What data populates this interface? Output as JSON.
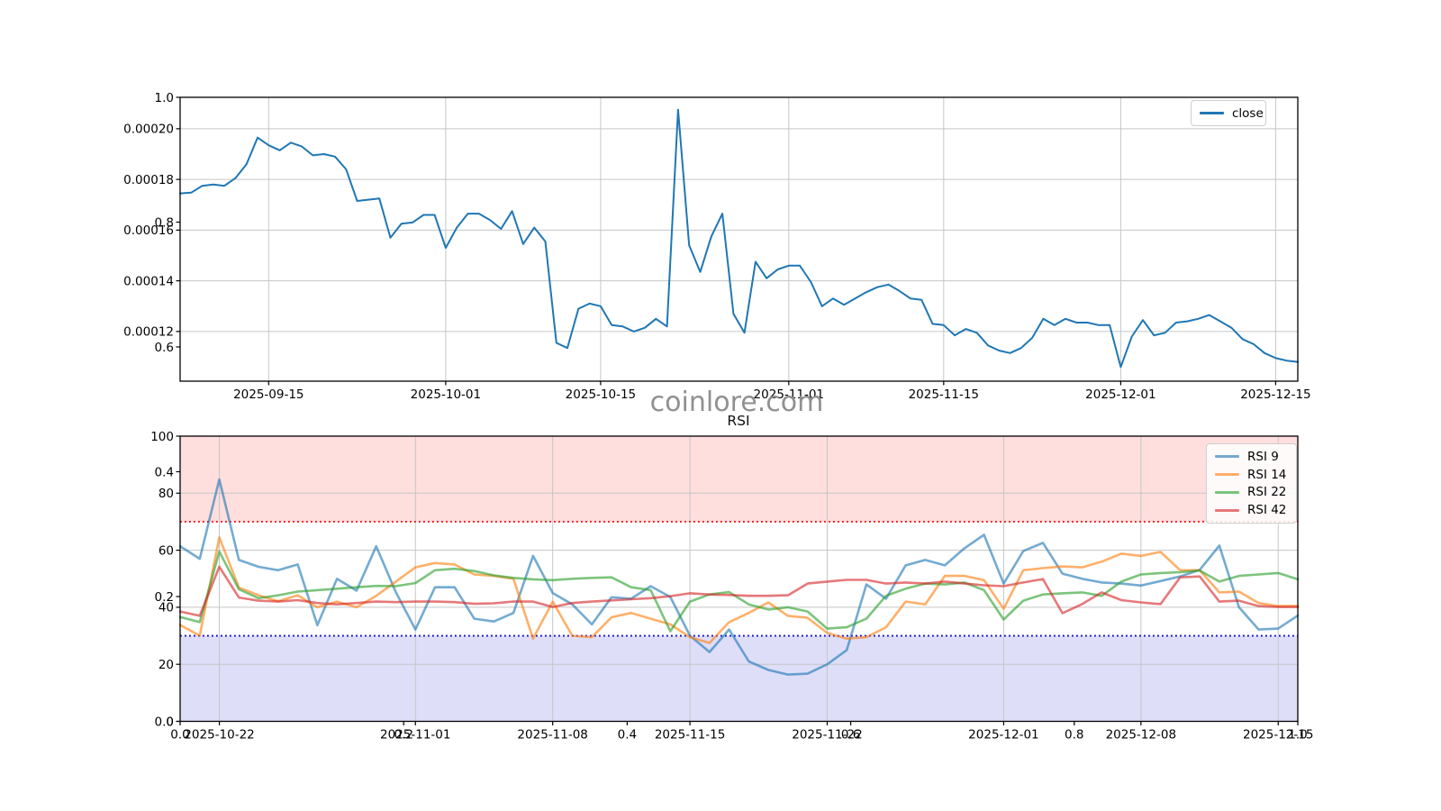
{
  "watermark": "coinlore.com",
  "figure_overlay_axis": {
    "xtick_labels": [
      "0.0",
      "0.2",
      "0.4",
      "0.6",
      "0.8",
      "1.0"
    ],
    "ytick_labels": [
      "1.0",
      "0.8",
      "0.6",
      "0.4",
      "0.2",
      "0.0"
    ]
  },
  "colors": {
    "grid": "#c6c6c6",
    "spine": "#000000",
    "watermark_gray": "#909090",
    "overbought_band": "rgba(255,0,0,0.13)",
    "oversold_band": "rgba(0,0,205,0.13)",
    "overbought_line": "#ff0000",
    "oversold_line": "#0000cd"
  },
  "chart_data": [
    {
      "type": "line",
      "name": "price-chart",
      "title": "",
      "x_start_date": "2025-09-07",
      "x_end_date": "2025-12-17",
      "ylim": [
        0.0001004,
        0.0002124
      ],
      "grid": true,
      "yticks": [
        {
          "value": 0.0002,
          "label": "0.00020"
        },
        {
          "value": 0.00018,
          "label": "0.00018"
        },
        {
          "value": 0.00016,
          "label": "0.00016"
        },
        {
          "value": 0.00014,
          "label": "0.00014"
        },
        {
          "value": 0.00012,
          "label": "0.00012"
        }
      ],
      "xticks": [
        {
          "label": "2025-09-15",
          "index": 8
        },
        {
          "label": "2025-10-01",
          "index": 24
        },
        {
          "label": "2025-10-15",
          "index": 38
        },
        {
          "label": "2025-11-01",
          "index": 55
        },
        {
          "label": "2025-11-15",
          "index": 69
        },
        {
          "label": "2025-12-01",
          "index": 85
        },
        {
          "label": "2025-12-15",
          "index": 99
        }
      ],
      "legend": {
        "position": "upper right",
        "entries": [
          "close"
        ]
      },
      "series": [
        {
          "name": "close",
          "color": "#1f77b4",
          "opacity": 1,
          "width": 2,
          "values": [
            0.0001745,
            0.0001748,
            0.0001775,
            0.000178,
            0.0001775,
            0.0001805,
            0.000186,
            0.0001965,
            0.0001935,
            0.0001915,
            0.0001945,
            0.000193,
            0.0001895,
            0.00019,
            0.000189,
            0.000184,
            0.0001715,
            0.000172,
            0.0001725,
            0.000157,
            0.0001625,
            0.000163,
            0.000166,
            0.000166,
            0.000153,
            0.000161,
            0.0001665,
            0.0001665,
            0.000164,
            0.0001605,
            0.0001675,
            0.0001545,
            0.000161,
            0.0001555,
            0.0001155,
            0.0001135,
            0.000129,
            0.000131,
            0.00013,
            0.0001225,
            0.000122,
            0.00012,
            0.0001215,
            0.000125,
            0.000122,
            0.0002075,
            0.000154,
            0.0001435,
            0.0001575,
            0.0001665,
            0.000127,
            0.0001195,
            0.0001475,
            0.000141,
            0.0001445,
            0.000146,
            0.000146,
            0.0001395,
            0.00013,
            0.000133,
            0.0001305,
            0.000133,
            0.0001355,
            0.0001375,
            0.0001385,
            0.000136,
            0.000133,
            0.0001325,
            0.000123,
            0.0001225,
            0.0001185,
            0.000121,
            0.0001195,
            0.0001145,
            0.0001125,
            0.0001115,
            0.0001135,
            0.0001175,
            0.000125,
            0.0001225,
            0.000125,
            0.0001235,
            0.0001235,
            0.0001225,
            0.0001225,
            0.000106,
            0.000118,
            0.0001245,
            0.0001185,
            0.0001195,
            0.0001235,
            0.000124,
            0.000125,
            0.0001265,
            0.000124,
            0.0001215,
            0.000117,
            0.000115,
            0.0001115,
            0.0001095,
            0.0001085,
            0.000108
          ]
        }
      ]
    },
    {
      "type": "line",
      "name": "rsi-chart",
      "title": "RSI",
      "x_start_date": "2025-10-20",
      "x_end_date": "2025-12-16",
      "ylim": [
        0,
        100
      ],
      "grid": true,
      "yticks": [
        {
          "value": 100,
          "label": "100"
        },
        {
          "value": 80,
          "label": "80"
        },
        {
          "value": 60,
          "label": "60"
        },
        {
          "value": 40,
          "label": "40"
        },
        {
          "value": 20,
          "label": "20"
        },
        {
          "value": 0,
          "label": "0"
        }
      ],
      "xticks": [
        {
          "label": "2025-10-22",
          "index": 2
        },
        {
          "label": "2025-11-01",
          "index": 12
        },
        {
          "label": "2025-11-08",
          "index": 19
        },
        {
          "label": "2025-11-15",
          "index": 26
        },
        {
          "label": "2025-11-22",
          "index": 33
        },
        {
          "label": "2025-12-01",
          "index": 42
        },
        {
          "label": "2025-12-08",
          "index": 49
        },
        {
          "label": "2025-12-15",
          "index": 56
        }
      ],
      "bands": [
        {
          "from": 70,
          "to": 100,
          "color": "rgba(255,0,0,0.13)",
          "meaning": "overbought"
        },
        {
          "from": 0,
          "to": 30,
          "color": "rgba(0,0,205,0.13)",
          "meaning": "oversold"
        }
      ],
      "ref_lines": [
        {
          "value": 70,
          "color": "#ff0000",
          "style": "dotted"
        },
        {
          "value": 30,
          "color": "#0000cd",
          "style": "dotted"
        }
      ],
      "legend": {
        "position": "upper right",
        "entries": [
          "RSI 9",
          "RSI 14",
          "RSI 22",
          "RSI 42"
        ]
      },
      "series": [
        {
          "name": "RSI 9",
          "color": "#1f77b4",
          "opacity": 0.62,
          "width": 2.6,
          "values": [
            61.4,
            57,
            84.8,
            56.6,
            54.2,
            53,
            55,
            33.7,
            50,
            45.8,
            61.4,
            45.3,
            32.2,
            47,
            47,
            36,
            35,
            38,
            58,
            45,
            41,
            34,
            43.5,
            43,
            47.4,
            43.6,
            30,
            24.3,
            32.2,
            21,
            18,
            16.4,
            16.7,
            20,
            25,
            48,
            43,
            54.7,
            56.6,
            54.7,
            60.7,
            65.4,
            48.3,
            59.7,
            62.6,
            51.8,
            50,
            48.7,
            48.3,
            47.6,
            49.2,
            50.8,
            53.1,
            61.6,
            40,
            32.2,
            32.5,
            37.1
          ]
        },
        {
          "name": "RSI 14",
          "color": "#ff7f0e",
          "opacity": 0.62,
          "width": 2.6,
          "values": [
            33.8,
            30,
            64.5,
            46.9,
            44.2,
            42.1,
            44.2,
            40,
            42,
            40,
            44,
            49,
            54,
            55.5,
            55,
            51.5,
            51,
            50,
            29,
            42,
            30,
            29.5,
            36.5,
            38,
            36,
            34,
            29.5,
            27.5,
            34.8,
            38,
            41.7,
            37,
            36.3,
            31,
            29,
            29.5,
            33,
            42,
            41,
            51,
            51,
            49.5,
            39.5,
            53,
            53.7,
            54.3,
            54,
            56,
            58.8,
            58,
            59.4,
            53,
            53,
            45.2,
            45.5,
            41.5,
            40.4,
            40.5
          ]
        },
        {
          "name": "RSI 22",
          "color": "#2ca02c",
          "opacity": 0.62,
          "width": 2.6,
          "values": [
            36.6,
            34.8,
            59.5,
            46.3,
            43.2,
            44.2,
            45.5,
            46,
            46.5,
            47,
            47.5,
            47.4,
            48.5,
            53,
            53.5,
            52.7,
            51.2,
            50.3,
            49.8,
            49.5,
            50,
            50.3,
            50.5,
            47,
            46,
            31.6,
            42,
            44.5,
            45.3,
            41,
            39.2,
            40,
            38.5,
            32.5,
            33,
            36,
            44,
            46.5,
            48.3,
            48,
            48.7,
            46,
            35.7,
            42.3,
            44.5,
            44.9,
            45.2,
            44,
            49,
            51.5,
            52,
            52.3,
            52.9,
            49,
            51,
            51.5,
            52,
            49.8
          ]
        },
        {
          "name": "RSI 42",
          "color": "#d62728",
          "opacity": 0.62,
          "width": 2.6,
          "values": [
            38.5,
            37,
            54.2,
            43.4,
            42.3,
            42,
            42.5,
            41.5,
            41,
            41.5,
            42,
            41.8,
            42,
            42,
            41.8,
            41.2,
            41.4,
            42,
            42,
            40.1,
            41.5,
            42,
            42.4,
            42.8,
            43.2,
            43.9,
            44.9,
            44.5,
            44.3,
            44,
            44,
            44.2,
            48.3,
            49,
            49.6,
            49.6,
            48.3,
            48.7,
            48.3,
            49,
            48.3,
            47.7,
            47.4,
            48.7,
            49.9,
            37.9,
            41.1,
            45.2,
            42.5,
            41.7,
            41.1,
            50.5,
            50.8,
            42,
            42.3,
            40.4,
            40.1,
            40.1
          ]
        }
      ]
    }
  ]
}
